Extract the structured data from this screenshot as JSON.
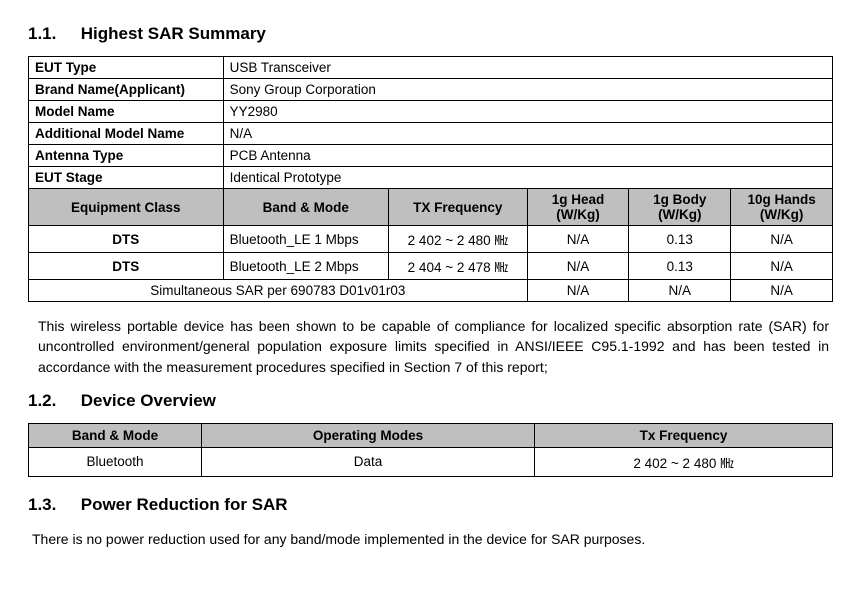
{
  "section11": {
    "num": "1.1.",
    "title": "Highest SAR Summary"
  },
  "section12": {
    "num": "1.2.",
    "title": "Device  Overview"
  },
  "section13": {
    "num": "1.3.",
    "title": "Power Reduction for SAR"
  },
  "sar": {
    "infoRows": [
      {
        "label": "EUT Type",
        "value": "USB Transceiver"
      },
      {
        "label": "Brand Name(Applicant)",
        "value": "Sony Group Corporation"
      },
      {
        "label": "Model Name",
        "value": "YY2980"
      },
      {
        "label": "Additional Model Name",
        "value": "N/A"
      },
      {
        "label": "Antenna Type",
        "value": "PCB Antenna"
      },
      {
        "label": "EUT Stage",
        "value": "Identical Prototype"
      }
    ],
    "headers": [
      "Equipment Class",
      "Band & Mode",
      "TX Frequency",
      "1g Head (W/Kg)",
      "1g Body (W/Kg)",
      "10g Hands (W/Kg)"
    ],
    "dataRows": [
      {
        "cls": "DTS",
        "band": "Bluetooth_LE 1 Mbps",
        "freq": "2 402 ~ 2 480 ㎒",
        "head": "N/A",
        "body": "0.13",
        "hands": "N/A"
      },
      {
        "cls": "DTS",
        "band": "Bluetooth_LE 2 Mbps",
        "freq": "2 404 ~ 2 478 ㎒",
        "head": "N/A",
        "body": "0.13",
        "hands": "N/A"
      }
    ],
    "simRow": {
      "label": "Simultaneous SAR per 690783 D01v01r03",
      "head": "N/A",
      "body": "N/A",
      "hands": "N/A"
    }
  },
  "paragraph1": "This wireless portable device has been shown to be capable of compliance for localized specific absorption rate (SAR) for uncontrolled environment/general population exposure limits specified in ANSI/IEEE C95.1-1992 and has been tested in accordance with the measurement procedures specified in Section 7 of this report;",
  "overview": {
    "headers": [
      "Band & Mode",
      "Operating Modes",
      "Tx Frequency"
    ],
    "row": {
      "band": "Bluetooth",
      "mode": "Data",
      "freq": "2 402 ~ 2 480 ㎒"
    }
  },
  "paragraph2": "There is no power reduction used for any band/mode implemented in the device for SAR purposes.",
  "colors": {
    "headerBg": "#bfbfbf",
    "border": "#000000",
    "text": "#000000",
    "page": "#ffffff"
  }
}
